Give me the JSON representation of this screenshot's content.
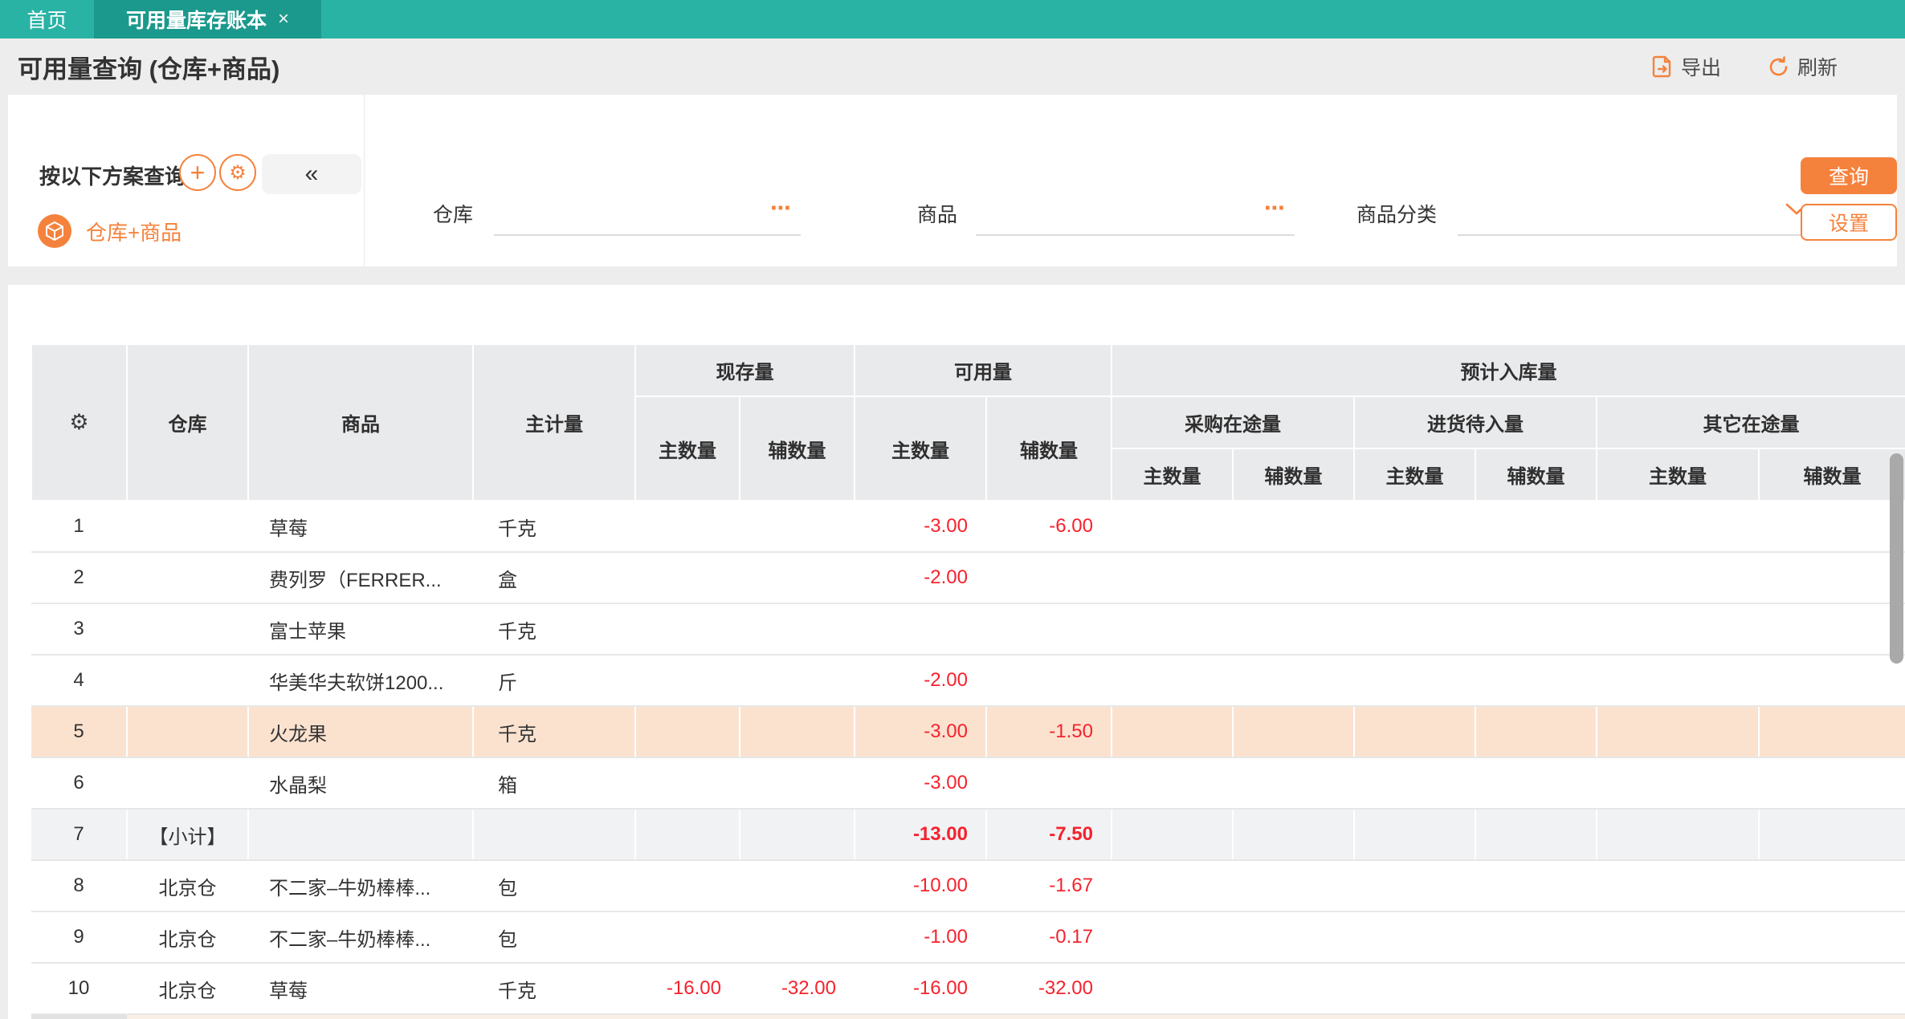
{
  "colors": {
    "topbar_teal": "#29b3a5",
    "active_tab_teal": "#1b998c",
    "accent_orange": "#f5823c",
    "negative_red": "#f5222d",
    "highlight_row": "#fbe2cf",
    "subtotal_row": "#f1f2f4"
  },
  "tabs": {
    "home": "首页",
    "active": "可用量库存账本",
    "close": "×"
  },
  "header": {
    "title": "可用量查询 (仓库+商品)",
    "export_label": "导出",
    "refresh_label": "刷新"
  },
  "filter": {
    "scheme_title": "按以下方案查询",
    "plus": "+",
    "gear": "⚙",
    "collapse": "«",
    "scheme_name": "仓库+商品",
    "warehouse_label": "仓库",
    "product_label": "商品",
    "category_label": "商品分类",
    "warehouse_value": "",
    "product_value": "",
    "category_value": "",
    "ellipsis_trigger": "⋯",
    "query_label": "查询",
    "settings_label": "设置"
  },
  "table": {
    "corner_gear": "⚙",
    "columns": {
      "warehouse": "仓库",
      "product": "商品",
      "unit": "主计量",
      "stock": "现存量",
      "available": "可用量",
      "expected_in": "预计入库量",
      "purchase_transit": "采购在途量",
      "receive_pending": "进货待入量",
      "other_transit": "其它在途量",
      "main_qty": "主数量",
      "aux_qty": "辅数量"
    },
    "rows": [
      {
        "cells": [
          "1",
          "",
          "草莓",
          "千克",
          "",
          "",
          "-3.00",
          "-6.00",
          "",
          "",
          "",
          "",
          "",
          ""
        ],
        "variant": "default"
      },
      {
        "cells": [
          "2",
          "",
          "费列罗（FERRER...",
          "盒",
          "",
          "",
          "-2.00",
          "",
          "",
          "",
          "",
          "",
          "",
          ""
        ],
        "variant": "default"
      },
      {
        "cells": [
          "3",
          "",
          "富士苹果",
          "千克",
          "",
          "",
          "",
          "",
          "",
          "",
          "",
          "",
          "",
          ""
        ],
        "variant": "default"
      },
      {
        "cells": [
          "4",
          "",
          "华美华夫软饼1200...",
          "斤",
          "",
          "",
          "-2.00",
          "",
          "",
          "",
          "",
          "",
          "",
          ""
        ],
        "variant": "default"
      },
      {
        "cells": [
          "5",
          "",
          "火龙果",
          "千克",
          "",
          "",
          "-3.00",
          "-1.50",
          "",
          "",
          "",
          "",
          "",
          ""
        ],
        "variant": "highlight"
      },
      {
        "cells": [
          "6",
          "",
          "水晶梨",
          "箱",
          "",
          "",
          "-3.00",
          "",
          "",
          "",
          "",
          "",
          "",
          ""
        ],
        "variant": "default"
      },
      {
        "cells": [
          "7",
          "【小计】",
          "",
          "",
          "",
          "",
          "-13.00",
          "-7.50",
          "",
          "",
          "",
          "",
          "",
          ""
        ],
        "variant": "subtotal"
      },
      {
        "cells": [
          "8",
          "北京仓",
          "不二家–牛奶棒棒...",
          "包",
          "",
          "",
          "-10.00",
          "-1.67",
          "",
          "",
          "",
          "",
          "",
          ""
        ],
        "variant": "default"
      },
      {
        "cells": [
          "9",
          "北京仓",
          "不二家–牛奶棒棒...",
          "包",
          "",
          "",
          "-1.00",
          "-0.17",
          "",
          "",
          "",
          "",
          "",
          ""
        ],
        "variant": "default"
      },
      {
        "cells": [
          "10",
          "北京仓",
          "草莓",
          "千克",
          "-16.00",
          "-32.00",
          "-16.00",
          "-32.00",
          "",
          "",
          "",
          "",
          "",
          ""
        ],
        "variant": "default"
      }
    ]
  }
}
